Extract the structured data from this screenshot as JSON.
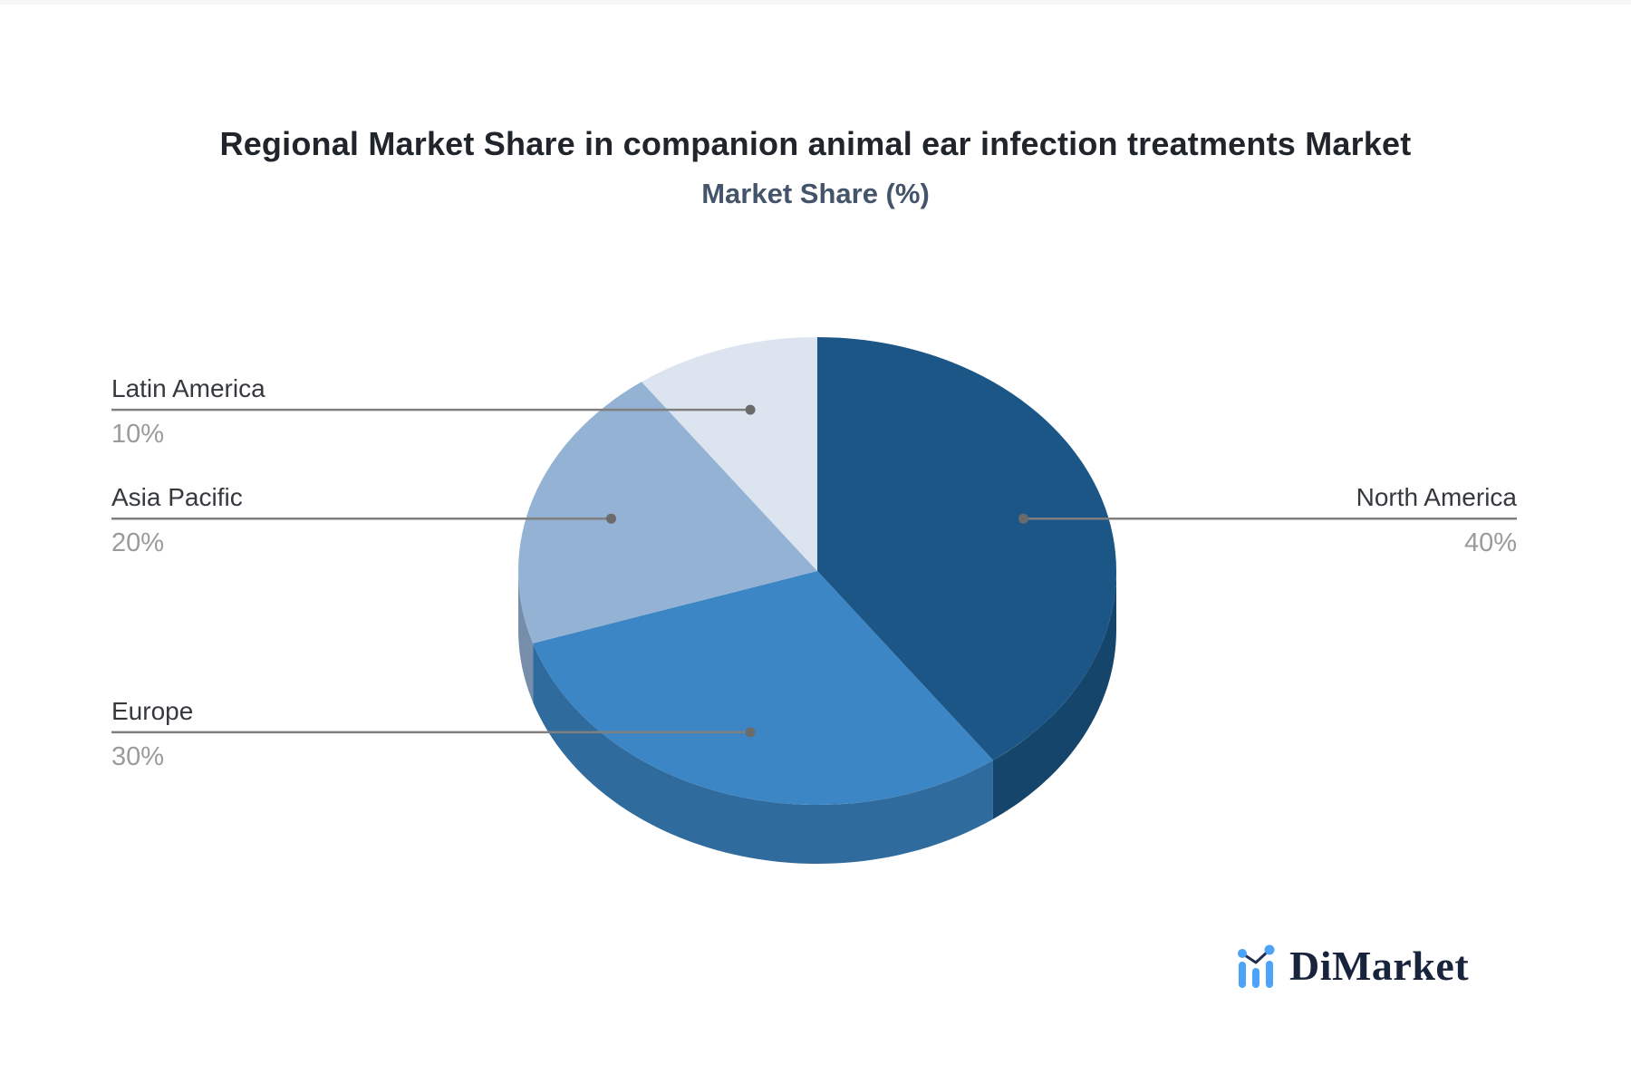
{
  "header": {
    "title": "Regional Market Share in companion animal ear infection treatments Market",
    "subtitle": "Market Share (%)"
  },
  "chart_data": {
    "type": "pie",
    "style": "3d",
    "title": "Regional Market Share in companion animal ear infection treatments Market",
    "subtitle": "Market Share (%)",
    "unit": "%",
    "start_angle_deg": 0,
    "direction": "clockwise",
    "legend_position": "external-callouts",
    "slices": [
      {
        "label": "North America",
        "value": 40,
        "pct_label": "40%",
        "color": "#1B5687",
        "callout_side": "right"
      },
      {
        "label": "Europe",
        "value": 30,
        "pct_label": "30%",
        "color": "#3C86C5",
        "callout_side": "left"
      },
      {
        "label": "Asia Pacific",
        "value": 20,
        "pct_label": "20%",
        "color": "#93B2D4",
        "callout_side": "left"
      },
      {
        "label": "Latin America",
        "value": 10,
        "pct_label": "10%",
        "color": "#DCE4EF",
        "callout_side": "left"
      }
    ],
    "callout_line_color": "#7f7f7f",
    "callout_dot_color": "#6b6b6b"
  },
  "footer": {
    "brand": "DiMarket",
    "logo_icon": "bar-line-chart-icon"
  }
}
